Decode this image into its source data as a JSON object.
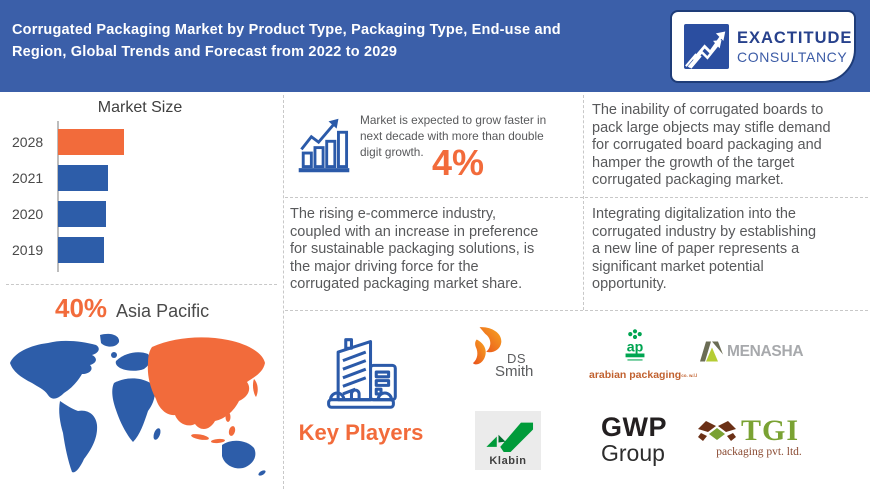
{
  "header": {
    "title": "Corrugated Packaging Market by Product Type, Packaging Type, End-use and\nRegion, Global Trends and Forecast from 2022 to 2029",
    "logo": {
      "line1": "EXACTITUDE",
      "line2": "CONSULTANCY"
    }
  },
  "chart_data": {
    "type": "bar",
    "orientation": "horizontal",
    "title": "Market Size",
    "categories": [
      "2028",
      "2021",
      "2020",
      "2019"
    ],
    "values": [
      100,
      76,
      73,
      70
    ],
    "value_note": "relative bar lengths, no numeric axis shown; 2028 indexed to 100",
    "bar_colors": [
      "#F26B3B",
      "#2D5DA9",
      "#2D5DA9",
      "#2D5DA9"
    ],
    "xlabel": "",
    "ylabel": "",
    "grid": false,
    "legend": false
  },
  "region_highlight": {
    "value": "40%",
    "label": "Asia Pacific"
  },
  "insights": {
    "growth": {
      "text": "Market is expected to grow faster in\nnext decade with more than double\ndigit growth.",
      "highlight": "4%"
    },
    "restraint": "The inability of corrugated boards to\npack large objects may stifle demand\nfor corrugated board packaging and\nhamper the growth of the target\ncorrugated packaging market.",
    "driver": "The rising e-commerce industry,\ncoupled with an increase in preference\nfor sustainable packaging solutions, is\nthe major driving force for the\ncorrugated packaging market share.",
    "opportunity": "Integrating digitalization into the\ncorrugated industry by establishing\na new line of paper represents a\nsignificant market potential\nopportunity."
  },
  "key_players": {
    "label": "Key Players",
    "logos": {
      "ds_smith": {
        "line1": "DS",
        "line2": "Smith"
      },
      "arabian": {
        "name": "arabian packaging",
        "suffix": "co. w.l.l"
      },
      "menasha": {
        "name": "MENASHA"
      },
      "klabin": {
        "name": "Klabin"
      },
      "gwp": {
        "line1": "GWP",
        "line2": "Group"
      },
      "tgi": {
        "line1": "TGI",
        "line2": "packaging pvt. ltd."
      }
    }
  },
  "colors": {
    "header_blue": "#3B5FA9",
    "accent_orange": "#F26B3B",
    "bar_blue": "#2D5DA9",
    "logo_navy": "#1E3C78",
    "body_text": "#58595B",
    "dashed_line": "#C8C8C8",
    "map_world_blue": "#2D5DA9",
    "map_asia_orange": "#F26B3B",
    "klabin_green": "#009B3A",
    "arabian_green": "#00A551",
    "menasha_gray": "#A7A9AC",
    "menasha_yellow_green": "#B5CC34",
    "menasha_olive": "#6B6D55",
    "gwp_black": "#231F20",
    "tgi_green": "#7AA233",
    "tgi_brown": "#6B3016",
    "ds_smith_gradient": [
      "#E94E1B",
      "#F7A823"
    ]
  }
}
